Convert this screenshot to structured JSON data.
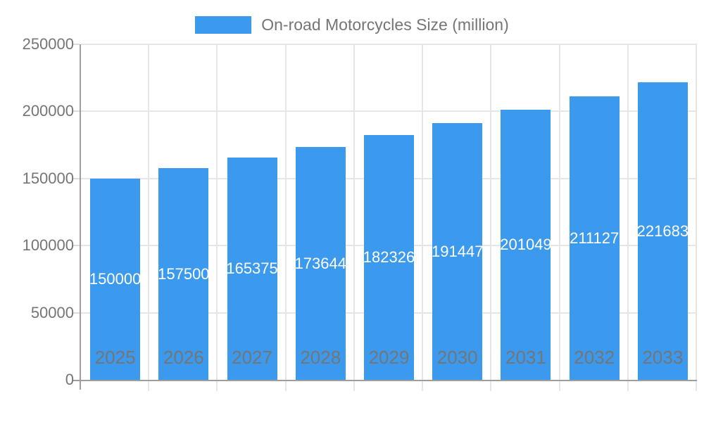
{
  "legend": {
    "label": "On-road Motorcycles Size (million)",
    "swatch_color": "#3B99EE"
  },
  "chart_data": {
    "type": "bar",
    "title": "On-road Motorcycles Size (million)",
    "categories": [
      "2025",
      "2026",
      "2027",
      "2028",
      "2029",
      "2030",
      "2031",
      "2032",
      "2033"
    ],
    "series": [
      {
        "name": "On-road Motorcycles Size (million)",
        "values": [
          150000,
          157500,
          165375,
          173644,
          182326,
          191447,
          201049,
          211127,
          221683
        ]
      }
    ],
    "bar_labels": [
      "150000",
      "157500",
      "165375",
      "173644",
      "182326",
      "191447",
      "201049",
      "211127",
      "221683"
    ],
    "xlabel": "",
    "ylabel": "",
    "ylim": [
      0,
      250000
    ],
    "yticks": [
      0,
      50000,
      100000,
      150000,
      200000,
      250000
    ],
    "ytick_labels": [
      "0",
      "50000",
      "100000",
      "150000",
      "200000",
      "250000"
    ],
    "grid": true,
    "legend_position": "top-center",
    "bar_color": "#3B99EE",
    "bar_label_color": "#ffffff"
  },
  "colors": {
    "bar": "#3B99EE",
    "grid": "#e6e6e6",
    "axis": "#9e9e9e",
    "tick": "#dcdcdc",
    "text": "#757575",
    "bar_label_text": "#ffffff",
    "background": "#ffffff"
  }
}
